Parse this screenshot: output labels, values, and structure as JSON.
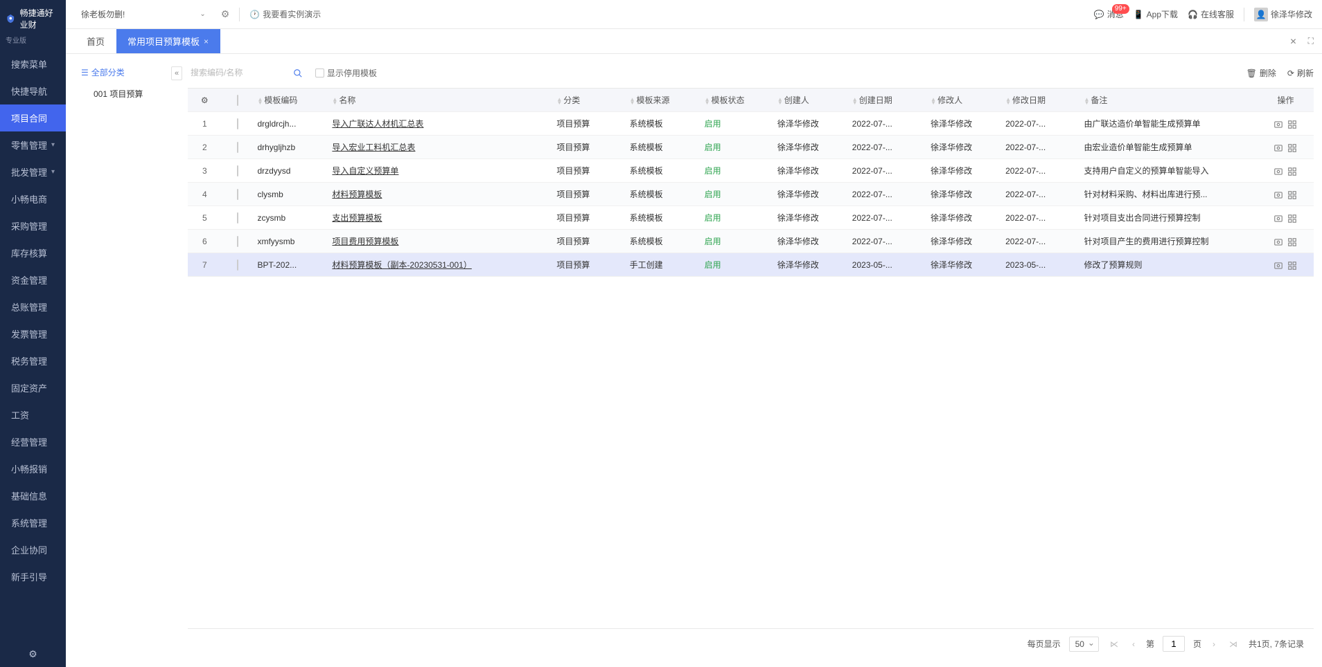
{
  "brand": {
    "name": "畅捷通好业财",
    "edition": "专业版"
  },
  "sidebar": {
    "items": [
      {
        "label": "搜索菜单",
        "id": "search-menu",
        "caret": false
      },
      {
        "label": "快捷导航",
        "id": "quick-nav",
        "caret": false
      },
      {
        "label": "项目合同",
        "id": "project-contract",
        "caret": false,
        "active": true
      },
      {
        "label": "零售管理",
        "id": "retail",
        "caret": true
      },
      {
        "label": "批发管理",
        "id": "wholesale",
        "caret": true
      },
      {
        "label": "小畅电商",
        "id": "ecommerce",
        "caret": false
      },
      {
        "label": "采购管理",
        "id": "purchase",
        "caret": false
      },
      {
        "label": "库存核算",
        "id": "inventory",
        "caret": false
      },
      {
        "label": "资金管理",
        "id": "funds",
        "caret": false
      },
      {
        "label": "总账管理",
        "id": "ledger",
        "caret": false
      },
      {
        "label": "发票管理",
        "id": "invoice",
        "caret": false
      },
      {
        "label": "税务管理",
        "id": "tax",
        "caret": false
      },
      {
        "label": "固定资产",
        "id": "assets",
        "caret": false
      },
      {
        "label": "工资",
        "id": "salary",
        "caret": false
      },
      {
        "label": "经营管理",
        "id": "operation",
        "caret": false
      },
      {
        "label": "小畅报销",
        "id": "expense",
        "caret": false
      },
      {
        "label": "基础信息",
        "id": "basedata",
        "caret": false
      },
      {
        "label": "系统管理",
        "id": "system",
        "caret": false
      },
      {
        "label": "企业协同",
        "id": "collab",
        "caret": false
      },
      {
        "label": "新手引导",
        "id": "guide",
        "caret": false
      }
    ]
  },
  "topbar": {
    "company": "徐老板勿删!",
    "demo_link": "我要看实例演示",
    "messages": {
      "label": "消息",
      "badge": "99+"
    },
    "app_download": "App下载",
    "online_service": "在线客服",
    "username": "徐泽华修改"
  },
  "tabs": {
    "items": [
      {
        "label": "首页",
        "closable": false
      },
      {
        "label": "常用项目预算模板",
        "closable": true,
        "active": true
      }
    ]
  },
  "category": {
    "root": "全部分类",
    "items": [
      {
        "label": "001 项目预算"
      }
    ]
  },
  "toolbar": {
    "search_placeholder": "搜索编码/名称",
    "show_disabled": "显示停用模板",
    "delete": "删除",
    "refresh": "刷新"
  },
  "table": {
    "columns": {
      "code": "模板编码",
      "name": "名称",
      "category": "分类",
      "source": "模板来源",
      "status": "模板状态",
      "creator": "创建人",
      "create_date": "创建日期",
      "modifier": "修改人",
      "modify_date": "修改日期",
      "remark": "备注",
      "operate": "操作"
    },
    "rows": [
      {
        "n": "1",
        "code": "drgldrcjh...",
        "name": "导入广联达人材机汇总表",
        "category": "项目预算",
        "source": "系统模板",
        "status": "启用",
        "creator": "徐泽华修改",
        "cdate": "2022-07-...",
        "modifier": "徐泽华修改",
        "mdate": "2022-07-...",
        "remark": "由广联达造价单智能生成预算单"
      },
      {
        "n": "2",
        "code": "drhygljhzb",
        "name": "导入宏业工料机汇总表",
        "category": "项目预算",
        "source": "系统模板",
        "status": "启用",
        "creator": "徐泽华修改",
        "cdate": "2022-07-...",
        "modifier": "徐泽华修改",
        "mdate": "2022-07-...",
        "remark": "由宏业造价单智能生成预算单"
      },
      {
        "n": "3",
        "code": "drzdyysd",
        "name": "导入自定义预算单",
        "category": "项目预算",
        "source": "系统模板",
        "status": "启用",
        "creator": "徐泽华修改",
        "cdate": "2022-07-...",
        "modifier": "徐泽华修改",
        "mdate": "2022-07-...",
        "remark": "支持用户自定义的预算单智能导入"
      },
      {
        "n": "4",
        "code": "clysmb",
        "name": "材料预算模板",
        "category": "项目预算",
        "source": "系统模板",
        "status": "启用",
        "creator": "徐泽华修改",
        "cdate": "2022-07-...",
        "modifier": "徐泽华修改",
        "mdate": "2022-07-...",
        "remark": "针对材料采购、材料出库进行预..."
      },
      {
        "n": "5",
        "code": "zcysmb",
        "name": "支出预算模板",
        "category": "项目预算",
        "source": "系统模板",
        "status": "启用",
        "creator": "徐泽华修改",
        "cdate": "2022-07-...",
        "modifier": "徐泽华修改",
        "mdate": "2022-07-...",
        "remark": "针对项目支出合同进行预算控制"
      },
      {
        "n": "6",
        "code": "xmfyysmb",
        "name": "项目费用预算模板",
        "category": "项目预算",
        "source": "系统模板",
        "status": "启用",
        "creator": "徐泽华修改",
        "cdate": "2022-07-...",
        "modifier": "徐泽华修改",
        "mdate": "2022-07-...",
        "remark": "针对项目产生的费用进行预算控制"
      },
      {
        "n": "7",
        "code": "BPT-202...",
        "name": "材料预算模板（副本-20230531-001）",
        "category": "项目预算",
        "source": "手工创建",
        "status": "启用",
        "creator": "徐泽华修改",
        "cdate": "2023-05-...",
        "modifier": "徐泽华修改",
        "mdate": "2023-05-...",
        "remark": "修改了预算规则",
        "hl": true
      }
    ]
  },
  "pager": {
    "per_page_label": "每页显示",
    "per_page_value": "50",
    "page_prefix": "第",
    "page_value": "1",
    "page_suffix": "页",
    "total": "共1页, 7条记录"
  },
  "colors": {
    "sidebar_bg": "#1a2947",
    "primary": "#4265ed",
    "accent": "#4b7bec",
    "status_on": "#2ea44f",
    "badge": "#ff4d4f",
    "row_highlight": "#e4e8fb"
  }
}
